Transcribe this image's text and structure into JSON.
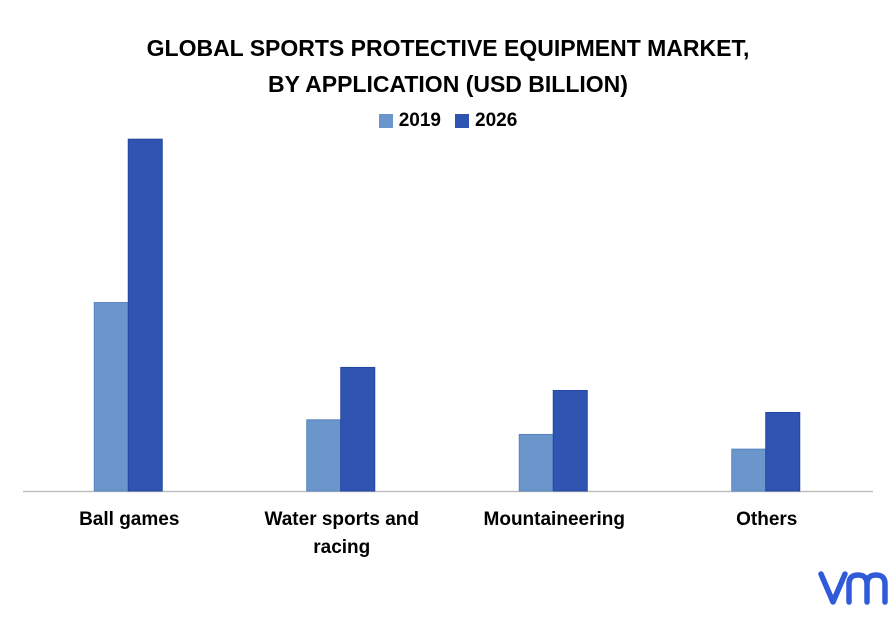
{
  "title_line1": "GLOBAL SPORTS PROTECTIVE EQUIPMENT MARKET,",
  "title_line2": "BY APPLICATION (USD BILLION)",
  "colors": {
    "series_2019": "#6b96cc",
    "series_2026": "#2f54b2",
    "axis": "#bfbfbf",
    "logo": "#2f5bd8"
  },
  "logo": {
    "icon": "vmr-logo-icon"
  },
  "chart_data": {
    "type": "bar",
    "categories": [
      "Ball games",
      "Water sports and racing",
      "Mountaineering",
      "Others"
    ],
    "series": [
      {
        "name": "2019",
        "values": [
          9.0,
          3.4,
          2.7,
          2.0
        ]
      },
      {
        "name": "2026",
        "values": [
          16.8,
          5.9,
          4.8,
          3.75
        ]
      }
    ],
    "title": "GLOBAL SPORTS PROTECTIVE EQUIPMENT MARKET, BY APPLICATION (USD BILLION)",
    "legend_position": "top",
    "grid": false,
    "ylim": [
      0,
      17
    ]
  }
}
